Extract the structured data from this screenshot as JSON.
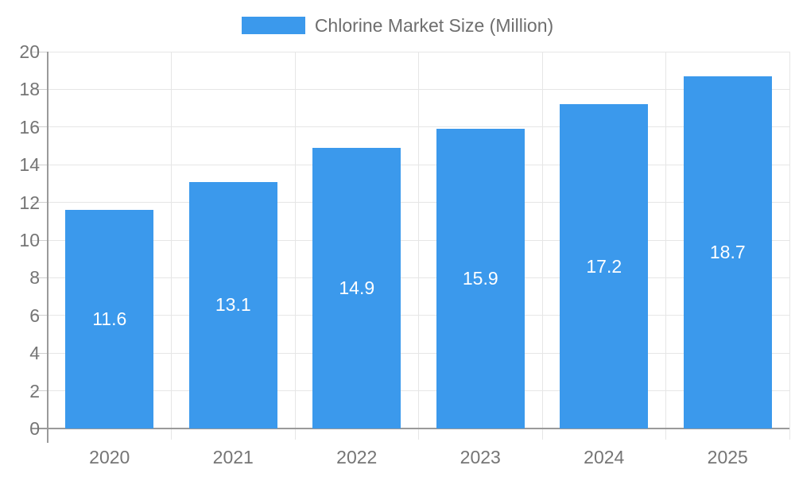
{
  "chart_data": {
    "type": "bar",
    "title": "Chlorine Market Size (Million)",
    "categories": [
      "2020",
      "2021",
      "2022",
      "2023",
      "2024",
      "2025"
    ],
    "values": [
      11.6,
      13.1,
      14.9,
      15.9,
      17.2,
      18.7
    ],
    "value_labels": [
      "11.6",
      "13.1",
      "14.9",
      "15.9",
      "17.2",
      "18.7"
    ],
    "xlabel": "",
    "ylabel": "",
    "ylim": [
      0,
      20
    ],
    "yticks": [
      0,
      2,
      4,
      6,
      8,
      10,
      12,
      14,
      16,
      18,
      20
    ],
    "grid": true,
    "legend_position": "top-center",
    "value_label_position": "inside-center",
    "colors": {
      "bar": "#3b99ec",
      "grid": "#e6e6e6",
      "axis": "#9a9a9a",
      "tick_stub": "#cfcfcf",
      "tick_label": "#757575",
      "legend_text": "#6e6e6e",
      "value_label": "#ffffff",
      "background": "#ffffff"
    }
  }
}
